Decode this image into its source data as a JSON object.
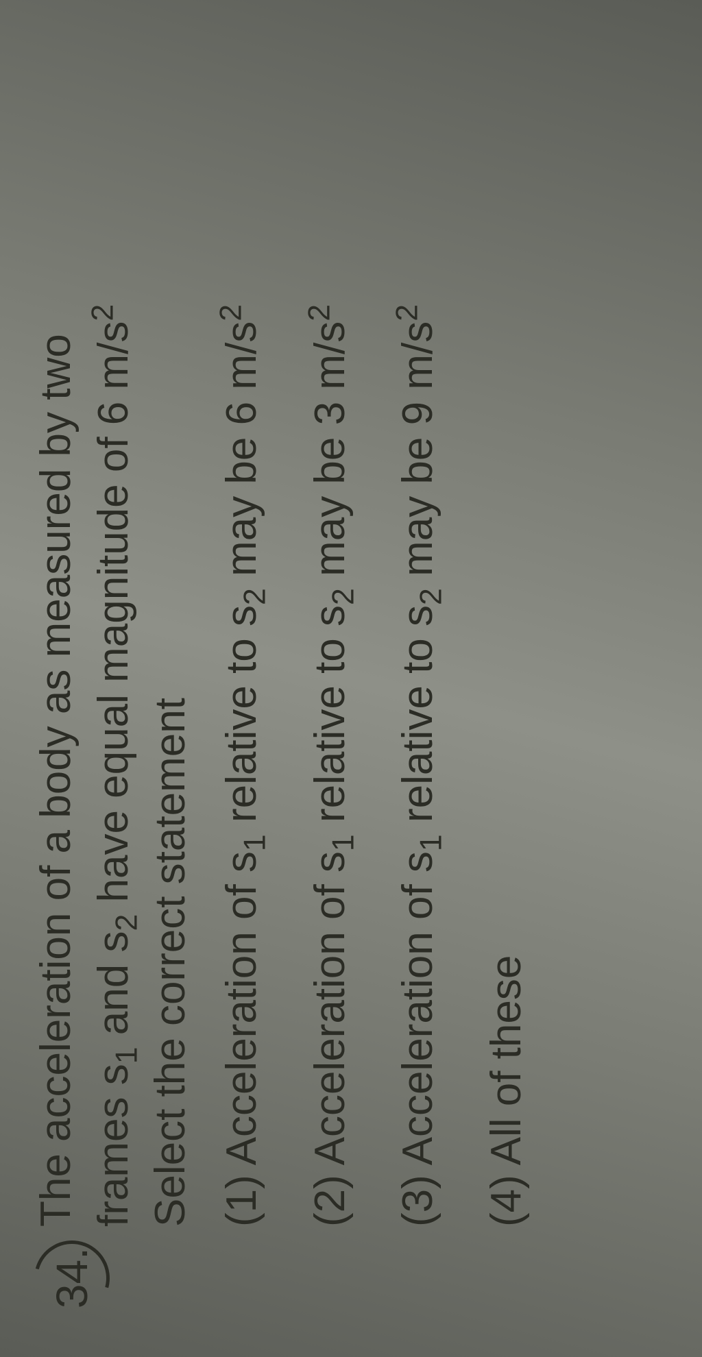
{
  "question": {
    "number": "34.",
    "stem_line1": "The acceleration of a body as measured by two",
    "stem_line2_pre": "frames s",
    "stem_line2_mid": " and s",
    "stem_line2_post": " have equal magnitude of 6 m/s",
    "stem_line3": "Select the correct statement"
  },
  "options": [
    {
      "num": "(1)",
      "pre": "Acceleration of s",
      "mid": " relative to s",
      "post": " may be 6 m/s"
    },
    {
      "num": "(2)",
      "pre": "Acceleration of s",
      "mid": " relative to s",
      "post": " may be 3 m/s"
    },
    {
      "num": "(3)",
      "pre": "Acceleration of s",
      "mid": " relative to s",
      "post": " may be 9 m/s"
    },
    {
      "num": "(4)",
      "text": "All of these"
    }
  ],
  "subs": {
    "one": "1",
    "two": "2",
    "sq": "2"
  },
  "style": {
    "text_color": "#2b2c25",
    "bg_gradient_from": "#5a5c56",
    "bg_gradient_to": "#8e9088",
    "font_size_pt": 46
  }
}
